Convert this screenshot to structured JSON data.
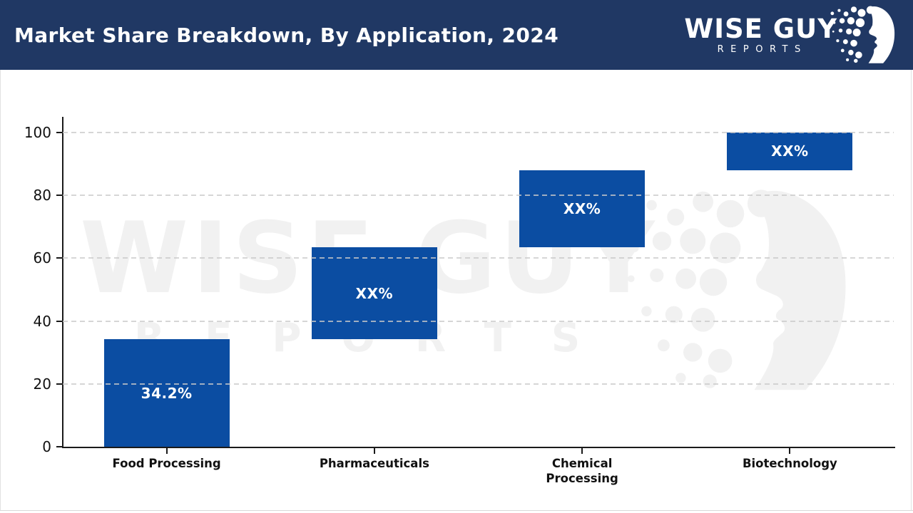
{
  "header": {
    "title": "Market Share Breakdown, By Application, 2024",
    "brand": {
      "line1": "WISE GUY",
      "line2": "REPORTS"
    }
  },
  "watermark": {
    "line1": "WISE GUY",
    "line2": "REPORTS"
  },
  "chart_data": {
    "type": "bar",
    "subtype": "waterfall",
    "title": "Market Share Breakdown, By Application, 2024",
    "categories": [
      "Food Processing",
      "Pharmaceuticals",
      "Chemical\nProcessing",
      "Biotechnology"
    ],
    "segments": [
      {
        "category": "Food Processing",
        "start": 0,
        "end": 34.2,
        "label": "34.2%"
      },
      {
        "category": "Pharmaceuticals",
        "start": 34.2,
        "end": 63.5,
        "label": "XX%"
      },
      {
        "category": "Chemical Processing",
        "start": 63.5,
        "end": 88.0,
        "label": "XX%"
      },
      {
        "category": "Biotechnology",
        "start": 88.0,
        "end": 100.0,
        "label": "XX%"
      }
    ],
    "ylim": [
      0,
      100
    ],
    "yticks": [
      0,
      20,
      40,
      60,
      80,
      100
    ],
    "grid": "dashed horizontal, drawn over bars",
    "legend": "none",
    "bar_color": "#0b4da2",
    "bar_label_color": "#ffffff"
  },
  "colors": {
    "header_bg": "#203864",
    "bar": "#0b4da2",
    "axis": "#1a1a1a",
    "gridline": "#cacaca",
    "watermark": "#f1f1f1",
    "background": "#ffffff"
  }
}
